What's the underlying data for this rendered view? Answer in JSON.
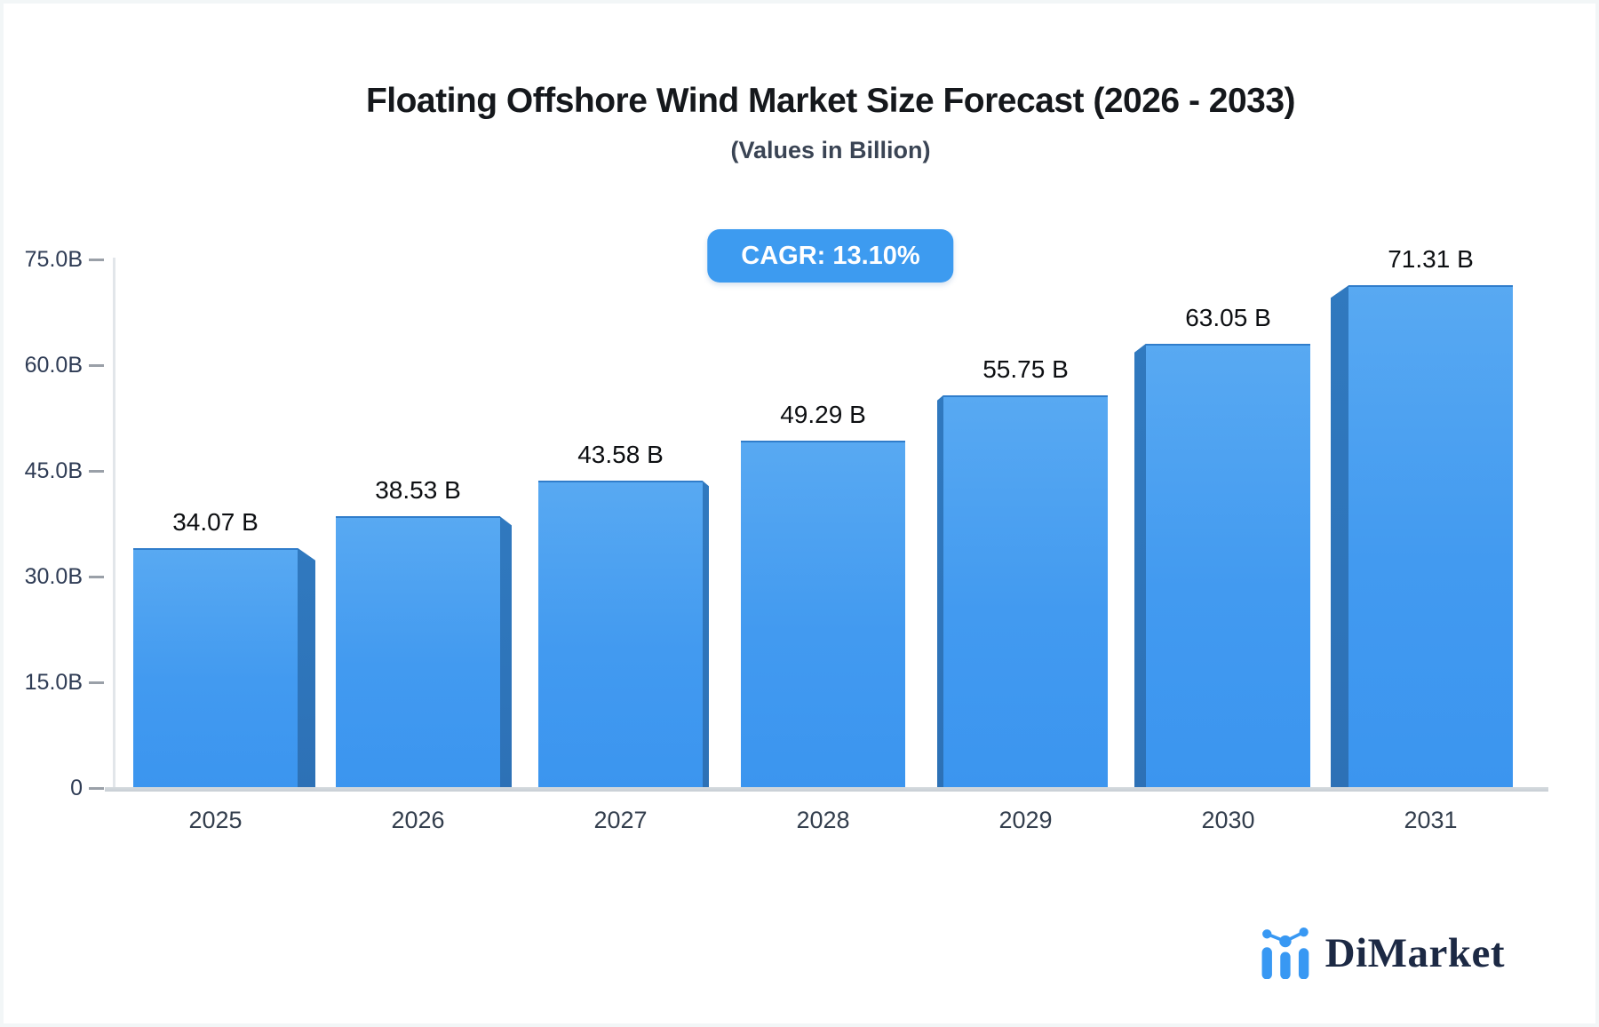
{
  "header": {
    "title": "Floating Offshore Wind Market Size Forecast (2026 - 2033)",
    "subtitle": "(Values in Billion)"
  },
  "badge": {
    "label": "CAGR: 13.10%",
    "background_color": "#3d9bf0",
    "text_color": "#ffffff"
  },
  "chart_data": {
    "type": "bar",
    "title": "Floating Offshore Wind Market Size Forecast (2026 - 2033)",
    "subtitle": "(Values in Billion)",
    "categories": [
      "2025",
      "2026",
      "2027",
      "2028",
      "2029",
      "2030",
      "2031"
    ],
    "values": [
      34.07,
      38.53,
      43.58,
      49.29,
      55.75,
      63.05,
      71.31
    ],
    "value_labels": [
      "34.07 B",
      "38.53 B",
      "43.58 B",
      "49.29 B",
      "55.75 B",
      "63.05 B",
      "71.31 B"
    ],
    "annotation": "CAGR: 13.10%",
    "xlabel": "",
    "ylabel": "",
    "ylim": [
      0,
      75
    ],
    "yticks": [
      {
        "value": 0,
        "label": "0"
      },
      {
        "value": 15,
        "label": "15.0B"
      },
      {
        "value": 30,
        "label": "30.0B"
      },
      {
        "value": 45,
        "label": "45.0B"
      },
      {
        "value": 60,
        "label": "60.0B"
      },
      {
        "value": 75,
        "label": "75.0B"
      }
    ],
    "grid": false,
    "legend": false,
    "bar_style": "3d",
    "bar_face_color_top": "#58a9f2",
    "bar_face_color_bottom": "#3b95ef",
    "bar_side_color": "#2e75bb"
  },
  "logo": {
    "text": "DiMarket",
    "icon": "bar-chart-icon",
    "text_color": "#1c2944",
    "icon_color": "#3898f3"
  }
}
